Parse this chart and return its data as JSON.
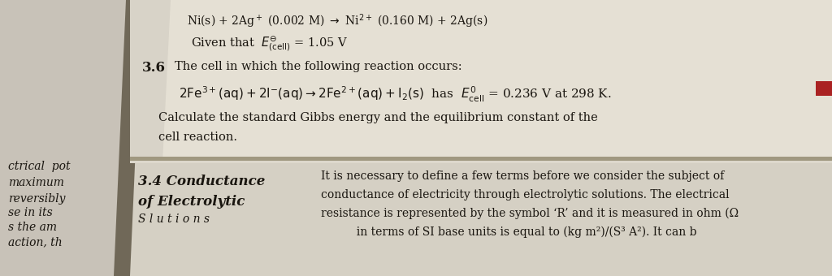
{
  "bg_color": "#b8b0a4",
  "upper_page_color": "#e8e3d8",
  "lower_page_color": "#d8d3c8",
  "left_bg_color": "#a8a098",
  "spine_color": "#706860",
  "red_strip_color": "#aa2222",
  "text_color": "#1a1610",
  "top_line": "Ni(s) + 2Ag$^+$ (0.002 M) $\\rightarrow$ Ni$^{2+}$ (0.160 M) + 2Ag(s)",
  "given_line_pre": "Given that  ",
  "given_line_post": " = 1.05 V",
  "section_header_num": "3.6",
  "section_header_text": "The cell in which the following reaction occurs:",
  "reaction_main": "$2\\mathrm{Fe}^{3+}(\\mathrm{aq})+2\\mathrm{I}^{-}(\\mathrm{aq})\\rightarrow 2\\mathrm{Fe}^{2+}(\\mathrm{aq})+\\mathrm{I}_2(\\mathrm{s})$",
  "reaction_has": "  has  ",
  "reaction_ecell": "$E^{0}_{\\mathrm{cell}}$",
  "reaction_end": " = 0.236 V at 298 K.",
  "calc1": "Calculate the standard Gibbs energy and the equilibrium constant of the",
  "calc2": "cell reaction.",
  "left_lines": [
    "ctrical  pot",
    "maximum",
    "reversibly",
    "se in its",
    "s the am",
    "action, th"
  ],
  "bot_section_label": "3.4",
  "bot_title1": "Conductance",
  "bot_title2": "of Electrolytic",
  "bot_title3": "S l u t i o n s",
  "bot_text1": "It is necessary to define a few terms before we consider the subject of",
  "bot_text2": "conductance of electricity through electrolytic solutions. The electrical",
  "bot_text3": "resistance is represented by the symbol ‘R’ and it is measured in ohm (Ω",
  "bot_text4": "          in terms of SI base units is equal to (kg m²)/(S³ A²). It can b"
}
